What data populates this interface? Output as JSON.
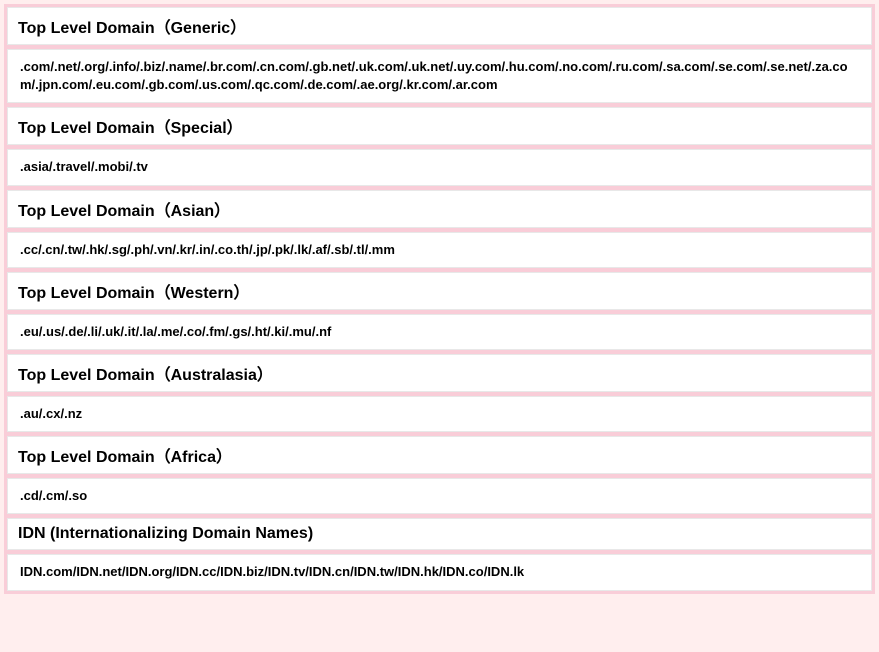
{
  "styling": {
    "background_color": "#f9cdd8",
    "box_background": "#ffffff",
    "box_border": "#e8e8e8",
    "text_color": "#000000",
    "header_fontsize": 16,
    "content_fontsize": 13,
    "font_family": "Verdana"
  },
  "sections": [
    {
      "header": "Top Level Domain（Generic）",
      "content": ".com/.net/.org/.info/.biz/.name/.br.com/.cn.com/.gb.net/.uk.com/.uk.net/.uy.com/.hu.com/.no.com/.ru.com/.sa.com/.se.com/.se.net/.za.com/.jpn.com/.eu.com/.gb.com/.us.com/.qc.com/.de.com/.ae.org/.kr.com/.ar.com"
    },
    {
      "header": "Top Level Domain（Special）",
      "content": ".asia/.travel/.mobi/.tv"
    },
    {
      "header": "Top Level Domain（Asian）",
      "content": ".cc/.cn/.tw/.hk/.sg/.ph/.vn/.kr/.in/.co.th/.jp/.pk/.lk/.af/.sb/.tl/.mm"
    },
    {
      "header": "Top Level Domain（Western）",
      "content": ".eu/.us/.de/.li/.uk/.it/.la/.me/.co/.fm/.gs/.ht/.ki/.mu/.nf"
    },
    {
      "header": "Top Level Domain（Australasia）",
      "content": ".au/.cx/.nz"
    },
    {
      "header": "Top Level Domain（Africa）",
      "content": ".cd/.cm/.so"
    },
    {
      "header": "IDN (Internationalizing Domain Names)",
      "content": "IDN.com/IDN.net/IDN.org/IDN.cc/IDN.biz/IDN.tv/IDN.cn/IDN.tw/IDN.hk/IDN.co/IDN.lk"
    }
  ]
}
